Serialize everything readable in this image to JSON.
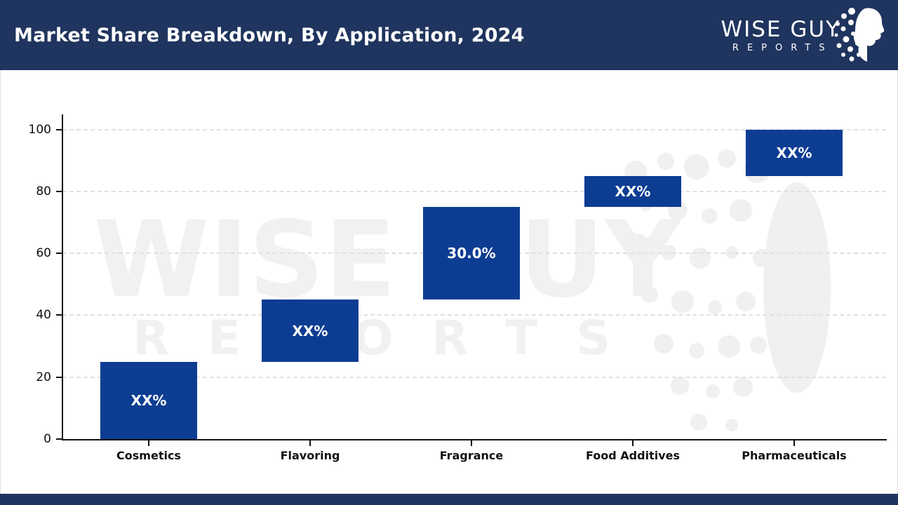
{
  "header": {
    "title": "Market Share Breakdown, By Application, 2024",
    "logo": {
      "wordmark": "WISE GUY",
      "subtext": "REPORTS",
      "head_icon": "dotted-head-profile"
    }
  },
  "watermark": {
    "wordmark": "WISE GUY",
    "subtext": "REPORTS"
  },
  "colors": {
    "header_bg": "#1f345e",
    "footer_bg": "#1f345e",
    "bar": "#0d3d92",
    "grid": "#e0e0e0",
    "axis": "#111111",
    "watermark": "#f1f1f1"
  },
  "chart_data": {
    "type": "bar",
    "subtype": "waterfall",
    "title": "Market Share Breakdown, By Application, 2024",
    "xlabel": "",
    "ylabel": "",
    "categories": [
      "Cosmetics",
      "Flavoring",
      "Fragrance",
      "Food Additives",
      "Pharmaceuticals"
    ],
    "segments": [
      {
        "category": "Cosmetics",
        "start": 0,
        "end": 25,
        "value_pct": 25,
        "label": "XX%"
      },
      {
        "category": "Flavoring",
        "start": 25,
        "end": 45,
        "value_pct": 20,
        "label": "XX%"
      },
      {
        "category": "Fragrance",
        "start": 45,
        "end": 75,
        "value_pct": 30,
        "label": "30.0%"
      },
      {
        "category": "Food Additives",
        "start": 75,
        "end": 85,
        "value_pct": 10,
        "label": "XX%"
      },
      {
        "category": "Pharmaceuticals",
        "start": 85,
        "end": 100,
        "value_pct": 15,
        "label": "XX%"
      }
    ],
    "y_ticks": [
      0,
      20,
      40,
      60,
      80,
      100
    ],
    "ylim": [
      0,
      105
    ],
    "grid": "horizontal-dashed",
    "legend": "none",
    "bar_color": "#0d3d92"
  }
}
